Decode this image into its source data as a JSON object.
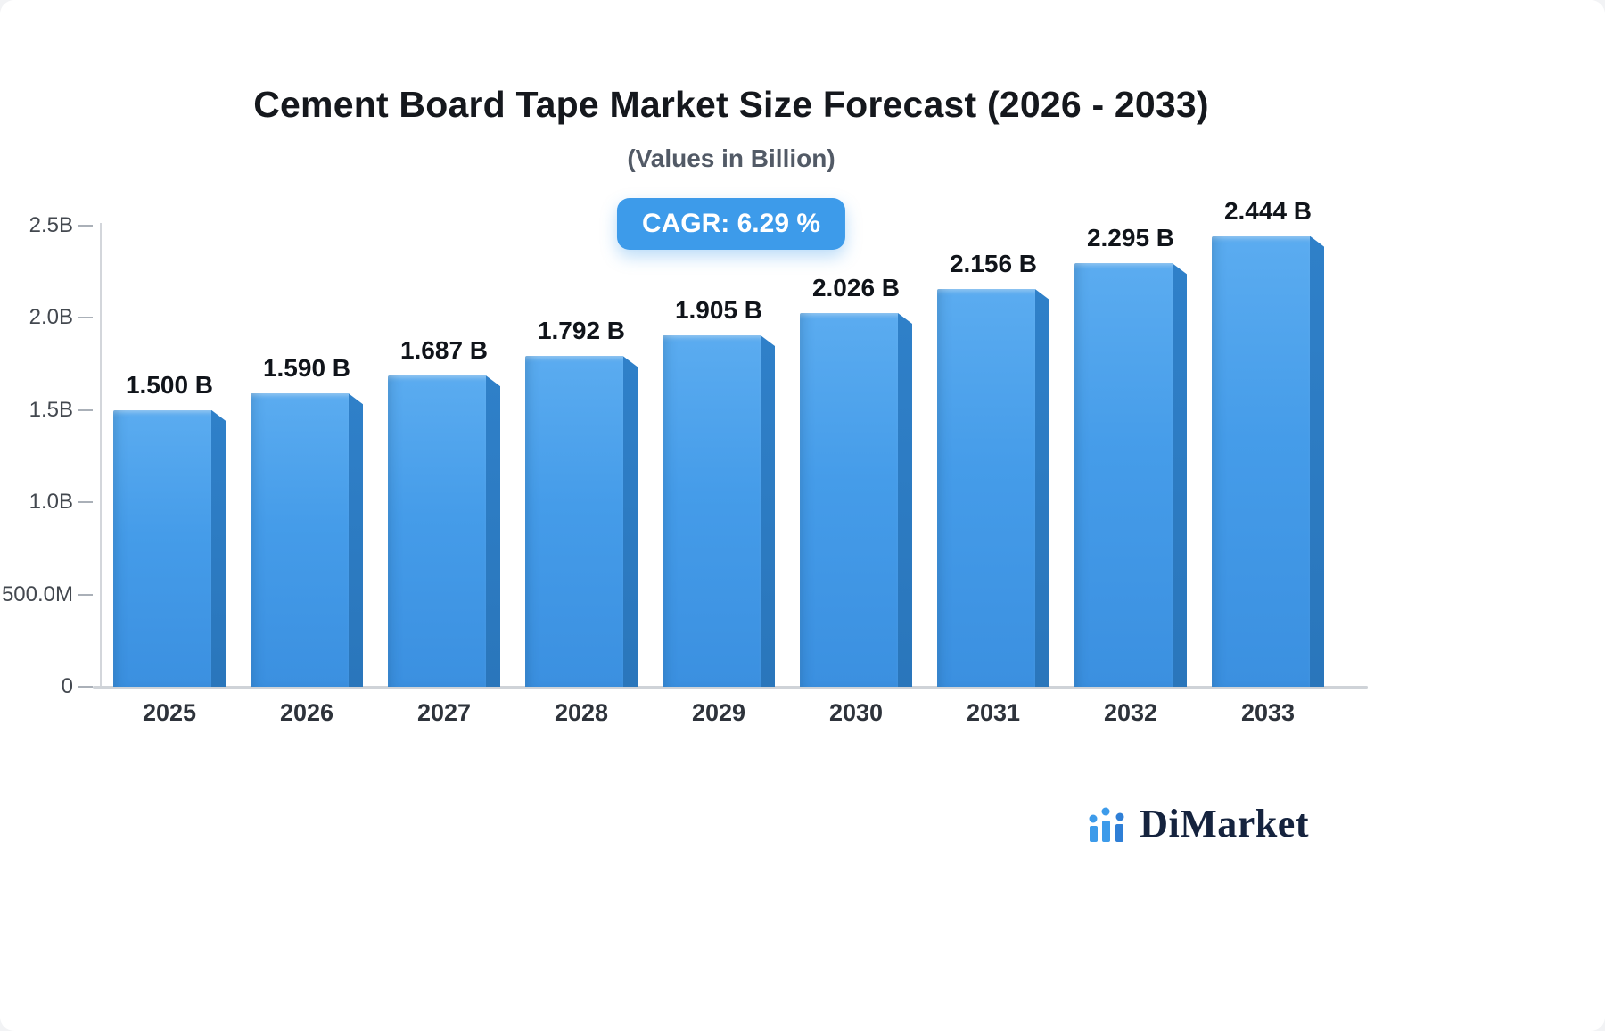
{
  "header": {
    "title": "Cement Board Tape Market Size Forecast (2026 - 2033)",
    "subtitle": "(Values in Billion)",
    "cagr_badge": "CAGR: 6.29 %"
  },
  "chart_data": {
    "type": "bar",
    "title": "Cement Board Tape Market Size Forecast (2026 - 2033)",
    "subtitle": "(Values in Billion)",
    "unit": "Billion USD",
    "categories": [
      "2025",
      "2026",
      "2027",
      "2028",
      "2029",
      "2030",
      "2031",
      "2032",
      "2033"
    ],
    "values": [
      1.5,
      1.59,
      1.687,
      1.792,
      1.905,
      2.026,
      2.156,
      2.295,
      2.444
    ],
    "value_labels": [
      "1.500 B",
      "1.590 B",
      "1.687 B",
      "1.792 B",
      "1.905 B",
      "2.026 B",
      "2.156 B",
      "2.295 B",
      "2.444 B"
    ],
    "cagr": "6.29 %",
    "ylim": [
      0,
      2.5
    ],
    "yticks": [
      {
        "value": 0,
        "label": "0"
      },
      {
        "value": 0.5,
        "label": "500.0M"
      },
      {
        "value": 1.0,
        "label": "1.0B"
      },
      {
        "value": 1.5,
        "label": "1.5B"
      },
      {
        "value": 2.0,
        "label": "2.0B"
      },
      {
        "value": 2.5,
        "label": "2.5B"
      }
    ],
    "grid": false,
    "legend": false,
    "bar_color": "#3D9BEA",
    "bar_side_color": "#2B7ABF"
  },
  "footer": {
    "brand": "DiMarket"
  },
  "colors": {
    "badge_bg": "#3D9BEA",
    "badge_text": "#FFFFFF",
    "title_text": "#15181D",
    "subtitle_text": "#525A66",
    "axis_line": "#CFD3D8",
    "brand_text": "#15233E",
    "brand_icon": "#3D9BEA"
  }
}
